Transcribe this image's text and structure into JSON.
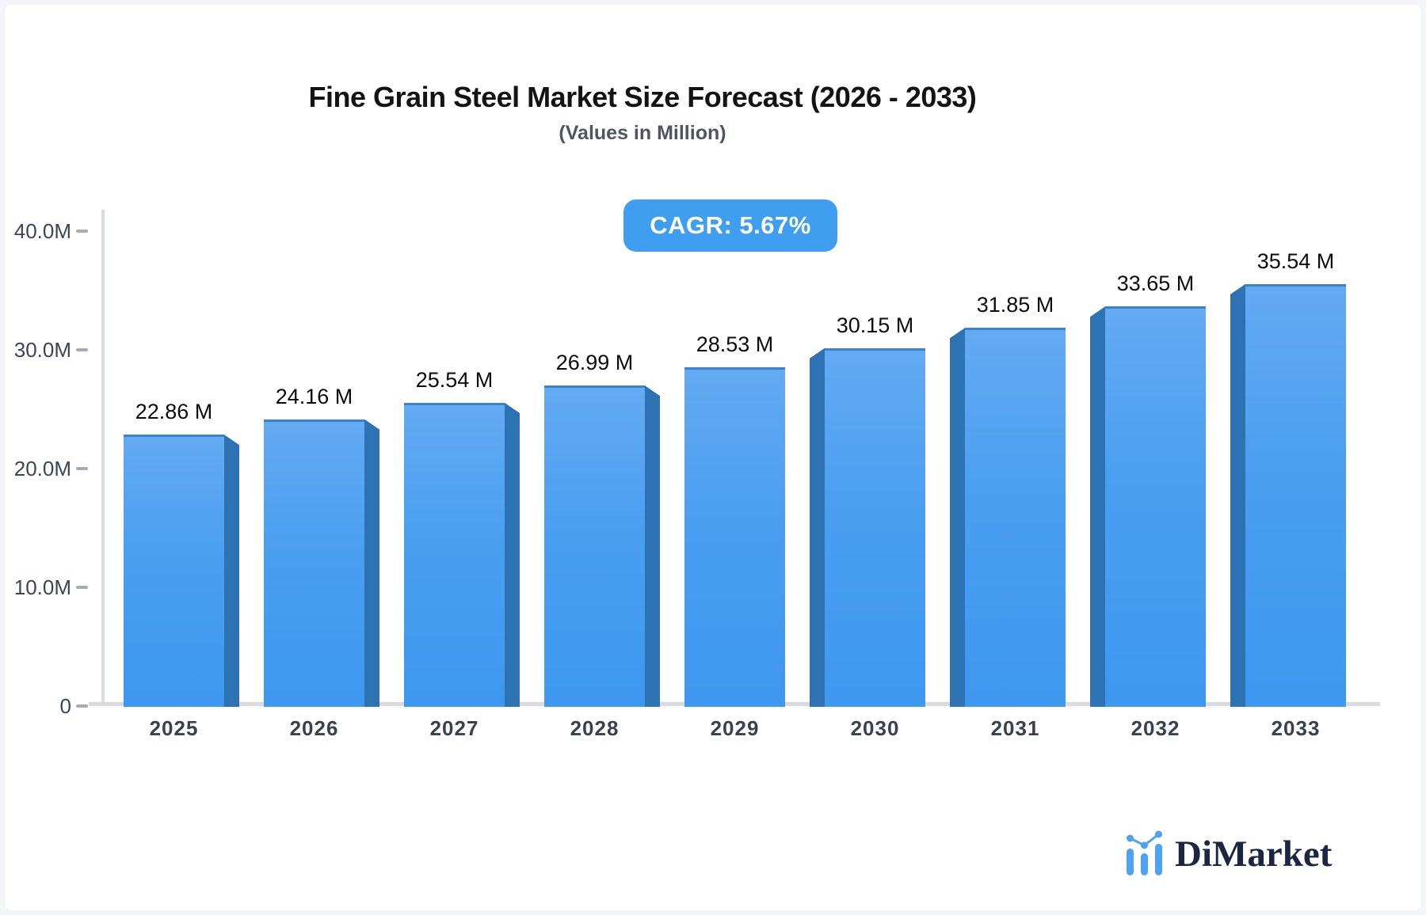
{
  "page": {
    "background": "#f3f5f8",
    "card_background": "#ffffff"
  },
  "header": {
    "title": "Fine Grain Steel Market Size Forecast (2026 - 2033)",
    "subtitle": "(Values in Million)"
  },
  "badge": {
    "label": "CAGR: 5.67%",
    "background": "#3f9ef0",
    "text_color": "#ffffff"
  },
  "chart_data": {
    "type": "bar",
    "title": "Fine Grain Steel Market Size Forecast (2026 - 2033)",
    "subtitle": "(Values in Million)",
    "annotation": "CAGR: 5.67%",
    "categories": [
      "2025",
      "2026",
      "2027",
      "2028",
      "2029",
      "2030",
      "2031",
      "2032",
      "2033"
    ],
    "values": [
      22.86,
      24.16,
      25.54,
      26.99,
      28.53,
      30.15,
      31.85,
      33.65,
      35.54
    ],
    "value_labels": [
      "22.86 M",
      "24.16 M",
      "25.54 M",
      "26.99 M",
      "28.53 M",
      "30.15 M",
      "31.85 M",
      "33.65 M",
      "35.54 M"
    ],
    "unit": "Million",
    "xlabel": "",
    "ylabel": "",
    "ylim": [
      0,
      40
    ],
    "y_ticks": [
      {
        "label": "0",
        "value": 0
      },
      {
        "label": "10.0M",
        "value": 10
      },
      {
        "label": "20.0M",
        "value": 20
      },
      {
        "label": "30.0M",
        "value": 30
      },
      {
        "label": "40.0M",
        "value": 40
      }
    ],
    "grid": false,
    "legend": false,
    "bar_sides": [
      "right",
      "right",
      "right",
      "right",
      "none",
      "left",
      "left",
      "left",
      "left"
    ],
    "colors": {
      "bar_face_top": "#63aaf2",
      "bar_face_mid": "#4a9ef0",
      "bar_face_bottom": "#3d98ef",
      "bar_side": "#2d72b2",
      "axis_line": "#d9dbdf",
      "tick": "#a6abb5",
      "y_label_text": "#3c4555",
      "x_label_text": "#39414f",
      "value_label_text": "#0c0c0c"
    }
  },
  "branding": {
    "logo_text": "DiMarket",
    "logo_icon_color": "#4da3f2",
    "logo_text_color": "#1b2742"
  }
}
